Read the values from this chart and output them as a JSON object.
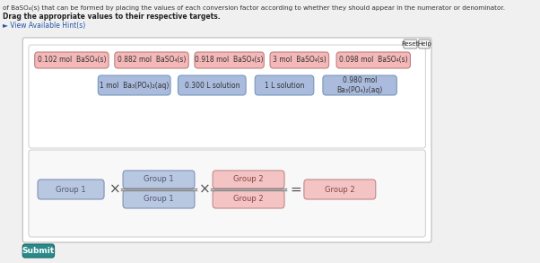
{
  "title_text": "of BaSO₄(s) that can be formed by placing the values of each conversion factor according to whether they should appear in the numerator or denominator.",
  "subtitle_text": "Drag the appropriate values to their respective targets.",
  "hint_text": "► View Available Hint(s)",
  "pink_face": "#f4b8b8",
  "pink_edge": "#c08080",
  "blue_face": "#aabbdd",
  "blue_edge": "#7799bb",
  "blue_face2": "#99aacc",
  "pink_items_row1": [
    "0.102 mol  BaSO₄(s)",
    "0.882 mol  BaSO₄(s)",
    "0.918 mol  BaSO₄(s)",
    "3 mol  BaSO₄(s)",
    "0.098 mol  BaSO₄(s)"
  ],
  "blue_items_row2": [
    "1 mol  Ba₃(PO₄)₂(aq)",
    "0.300 L solution",
    "1 L solution"
  ],
  "blue_item_multiline": "0.980 mol\nBa₃(PO₄)₂(aq)",
  "bottom_group1_label": "Group 1",
  "bottom_group2_label": "Group 2",
  "reset_label": "Reset",
  "help_label": "Help",
  "submit_label": "Submit",
  "submit_bg": "#2a8a8a",
  "submit_text": "#ffffff",
  "panel_border": "#bbbbbb",
  "divider_color": "#bbbbbb",
  "outer_bg": "#f0f0f0",
  "inner_top_bg": "#ffffff",
  "inner_bot_bg": "#f8f8f8"
}
